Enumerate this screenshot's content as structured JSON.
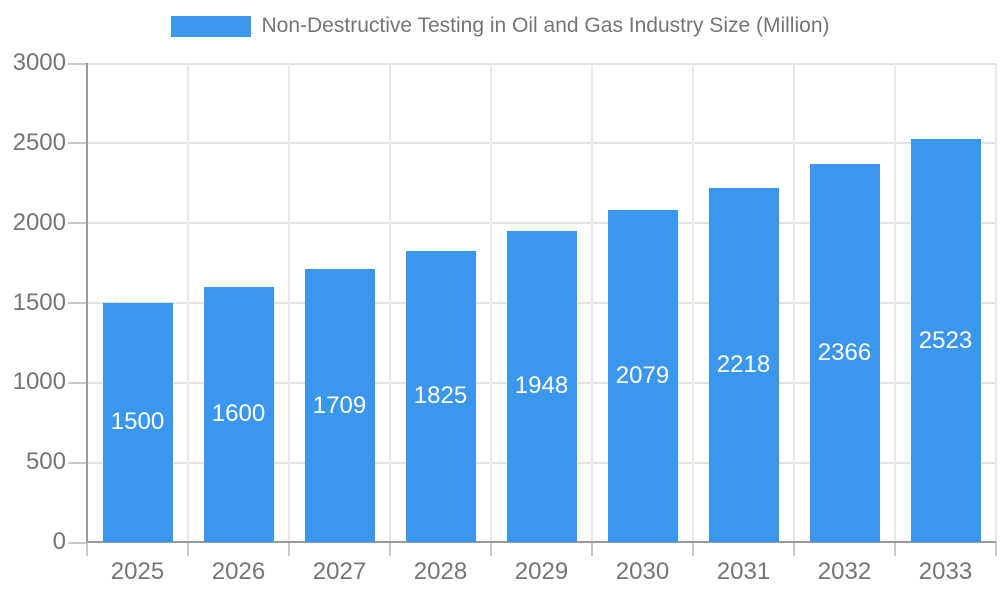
{
  "legend": {
    "label": "Non-Destructive Testing in Oil and Gas Industry Size (Million)"
  },
  "chart_data": {
    "type": "bar",
    "title": "Non-Destructive Testing in Oil and Gas Industry Size (Million)",
    "categories": [
      "2025",
      "2026",
      "2027",
      "2028",
      "2029",
      "2030",
      "2031",
      "2032",
      "2033"
    ],
    "values": [
      1500,
      1600,
      1709,
      1825,
      1948,
      2079,
      2218,
      2366,
      2523
    ],
    "xlabel": "",
    "ylabel": "",
    "ylim": [
      0,
      3000
    ],
    "yticks": [
      0,
      500,
      1000,
      1500,
      2000,
      2500,
      3000
    ],
    "grid": true,
    "legend_position": "top",
    "value_labels": "inside-center"
  },
  "colors": {
    "bar": "#3b96ee",
    "axis_text": "#757575",
    "legend_text": "#757575",
    "value_label_text": "#ffffff",
    "h_gridline": "#e3e3e3",
    "v_gridline": "#e9e9e9",
    "axis_line": "#9a9a9a",
    "tick": "#c9c9c9",
    "background": "#ffffff"
  }
}
